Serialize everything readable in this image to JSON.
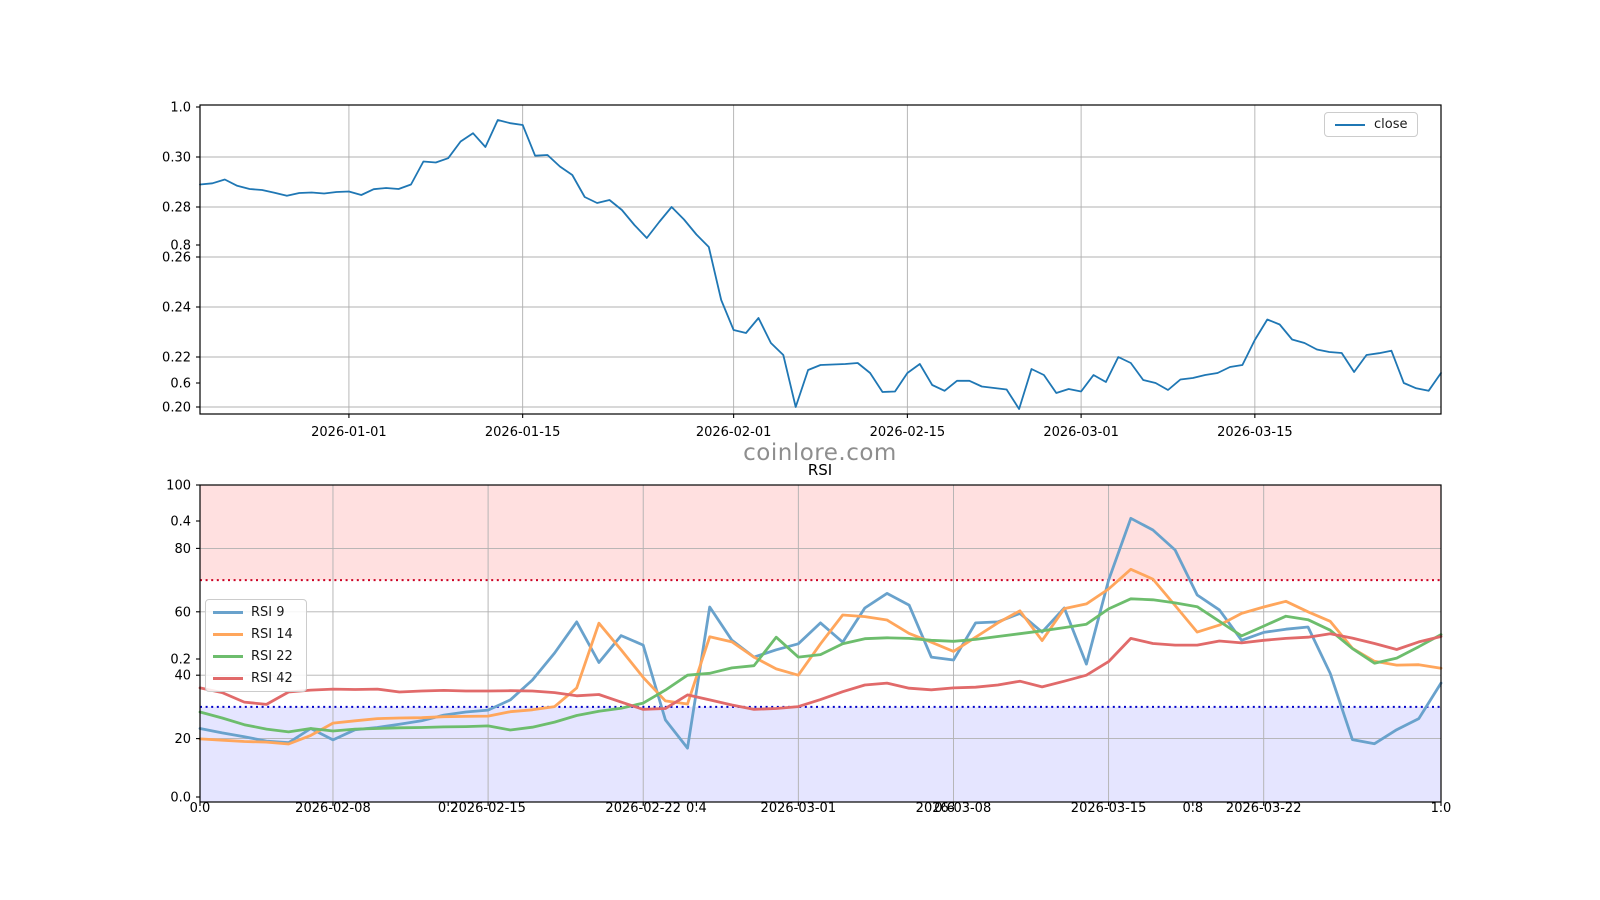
{
  "watermark": {
    "text": "coinlore.com"
  },
  "rsi_title": {
    "text": "RSI"
  },
  "price_legend": {
    "items": [
      {
        "label": "close",
        "color": "#1f77b4"
      }
    ]
  },
  "rsi_legend": {
    "items": [
      {
        "label": "RSI 9",
        "color": "#69a2cc"
      },
      {
        "label": "RSI 14",
        "color": "#ffa65c"
      },
      {
        "label": "RSI 22",
        "color": "#6dbd6d"
      },
      {
        "label": "RSI 42",
        "color": "#e16a6a"
      }
    ]
  },
  "colors": {
    "close": "#1f77b4",
    "rsi9": "#69a2cc",
    "rsi14": "#ffa65c",
    "rsi22": "#6dbd6d",
    "rsi42": "#e16a6a",
    "overbought_band": "rgba(255,0,0,0.12)",
    "oversold_band": "rgba(0,0,255,0.10)",
    "overbought_line": "#cc0022",
    "oversold_line": "#0000c8",
    "grid": "#b0b0b0",
    "spine": "#000000",
    "watermark": "#6e6e6e"
  },
  "overlay_axis": {
    "y_ticks": [
      {
        "label": "1.0",
        "t": 1.0
      },
      {
        "label": "0.8",
        "t": 0.8
      },
      {
        "label": "0.6",
        "t": 0.6
      },
      {
        "label": "0.4",
        "t": 0.4
      },
      {
        "label": "0.2",
        "t": 0.2
      },
      {
        "label": "0.0",
        "t": 0.0
      }
    ],
    "x_ticks": [
      {
        "label": "0.0",
        "t": 0.0
      },
      {
        "label": "0.2",
        "t": 0.2
      },
      {
        "label": "0.4",
        "t": 0.4
      },
      {
        "label": "0.6",
        "t": 0.6
      },
      {
        "label": "0.8",
        "t": 0.8
      },
      {
        "label": "1.0",
        "t": 1.0
      }
    ]
  },
  "chart_data": [
    {
      "type": "line",
      "name": "price",
      "title": "",
      "legend": [
        "close"
      ],
      "legend_position": "upper right",
      "grid": true,
      "x_start_date": "2025-12-20",
      "x_end_date": "2026-03-30",
      "x_ticks": [
        {
          "label": "2026-01-01",
          "day": 12
        },
        {
          "label": "2026-01-15",
          "day": 26
        },
        {
          "label": "2026-02-01",
          "day": 43
        },
        {
          "label": "2026-02-15",
          "day": 57
        },
        {
          "label": "2026-03-01",
          "day": 71
        },
        {
          "label": "2026-03-15",
          "day": 85
        }
      ],
      "y_ticks": [
        {
          "label": "0.20",
          "value": 0.2
        },
        {
          "label": "0.22",
          "value": 0.22
        },
        {
          "label": "0.24",
          "value": 0.24
        },
        {
          "label": "0.26",
          "value": 0.26
        },
        {
          "label": "0.28",
          "value": 0.28
        },
        {
          "label": "0.30",
          "value": 0.3
        }
      ],
      "ylim": [
        0.1972,
        0.3208
      ],
      "series": [
        {
          "name": "close",
          "color_key": "close",
          "width": 1.8,
          "values": [
            0.289,
            0.2895,
            0.291,
            0.2885,
            0.2872,
            0.2868,
            0.2857,
            0.2845,
            0.2856,
            0.2858,
            0.2854,
            0.286,
            0.2862,
            0.2848,
            0.2871,
            0.2876,
            0.2872,
            0.289,
            0.2982,
            0.2978,
            0.2995,
            0.3062,
            0.3095,
            0.304,
            0.3148,
            0.3135,
            0.3128,
            0.3005,
            0.3008,
            0.2962,
            0.2928,
            0.284,
            0.2816,
            0.2828,
            0.2788,
            0.2728,
            0.2676,
            0.274,
            0.28,
            0.275,
            0.269,
            0.264,
            0.2428,
            0.2308,
            0.2296,
            0.2356,
            0.2256,
            0.2208,
            0.2,
            0.2148,
            0.2168,
            0.217,
            0.2172,
            0.2176,
            0.2136,
            0.206,
            0.2062,
            0.2136,
            0.2172,
            0.2088,
            0.2065,
            0.2105,
            0.2105,
            0.2082,
            0.2076,
            0.207,
            0.1992,
            0.2152,
            0.2128,
            0.2056,
            0.2072,
            0.2062,
            0.2128,
            0.21,
            0.22,
            0.2176,
            0.2108,
            0.2096,
            0.2068,
            0.211,
            0.2116,
            0.2128,
            0.2136,
            0.216,
            0.2168,
            0.2268,
            0.235,
            0.233,
            0.227,
            0.2256,
            0.223,
            0.222,
            0.2216,
            0.214,
            0.2208,
            0.2215,
            0.2225,
            0.2096,
            0.2075,
            0.2065,
            0.2136
          ]
        }
      ]
    },
    {
      "type": "line",
      "name": "rsi",
      "title": "RSI",
      "legend": [
        "RSI 9",
        "RSI 14",
        "RSI 22",
        "RSI 42"
      ],
      "legend_position": "center left",
      "grid": true,
      "overbought_level": 70,
      "oversold_level": 30,
      "x_start_date": "2026-02-02",
      "x_end_date": "2026-03-30",
      "x_ticks": [
        {
          "label": "2026-02-08",
          "day": 6
        },
        {
          "label": "2026-02-15",
          "day": 13
        },
        {
          "label": "2026-02-22",
          "day": 20
        },
        {
          "label": "2026-03-01",
          "day": 27
        },
        {
          "label": "2026-03-08",
          "day": 34
        },
        {
          "label": "2026-03-15",
          "day": 41
        },
        {
          "label": "2026-03-22",
          "day": 48
        }
      ],
      "y_ticks": [
        {
          "label": "20",
          "value": 20
        },
        {
          "label": "40",
          "value": 40
        },
        {
          "label": "60",
          "value": 60
        },
        {
          "label": "80",
          "value": 80
        },
        {
          "label": "100",
          "value": 100
        }
      ],
      "ylim": [
        0,
        100
      ],
      "series": [
        {
          "name": "RSI 9",
          "color_key": "rsi9",
          "width": 2.8,
          "values": [
            23.2,
            21.8,
            20.6,
            19.2,
            18.7,
            23.2,
            19.6,
            22.8,
            23.5,
            24.5,
            25.6,
            27.4,
            28.4,
            29.0,
            32.2,
            38.5,
            47.0,
            56.8,
            44.0,
            52.5,
            49.5,
            25.9,
            17.0,
            61.5,
            51.0,
            45.7,
            48.0,
            49.9,
            56.5,
            50.4,
            61.2,
            65.8,
            62.1,
            45.7,
            44.8,
            56.5,
            56.8,
            59.5,
            53.6,
            61.2,
            43.5,
            70.0,
            89.5,
            85.8,
            79.5,
            65.3,
            60.6,
            51.0,
            53.5,
            54.5,
            55.2,
            40.6,
            19.7,
            18.4,
            22.8,
            26.3,
            37.5
          ]
        },
        {
          "name": "RSI 14",
          "color_key": "rsi14",
          "width": 2.8,
          "values": [
            19.9,
            19.5,
            19.1,
            18.9,
            18.3,
            21.0,
            24.9,
            25.6,
            26.3,
            26.5,
            26.6,
            26.9,
            27.0,
            27.1,
            28.5,
            29.1,
            30.1,
            36.0,
            56.4,
            48.0,
            39.3,
            31.9,
            30.9,
            52.1,
            50.5,
            45.7,
            42.0,
            40.0,
            49.9,
            59.0,
            58.5,
            57.4,
            53.2,
            50.4,
            47.5,
            52.0,
            56.5,
            60.3,
            50.9,
            61.0,
            62.5,
            67.2,
            73.4,
            70.3,
            62.0,
            53.6,
            55.8,
            59.5,
            61.5,
            63.3,
            60.0,
            57.0,
            48.5,
            44.4,
            43.2,
            43.3,
            42.2
          ]
        },
        {
          "name": "RSI 22",
          "color_key": "rsi22",
          "width": 2.8,
          "values": [
            28.4,
            26.5,
            24.4,
            23.0,
            22.1,
            23.2,
            22.4,
            23.0,
            23.2,
            23.4,
            23.5,
            23.7,
            23.8,
            24.0,
            22.7,
            23.6,
            25.2,
            27.3,
            28.6,
            29.6,
            31.2,
            35.3,
            40.0,
            40.6,
            42.3,
            43.0,
            52.0,
            45.7,
            46.5,
            49.9,
            51.5,
            51.8,
            51.6,
            51.0,
            50.7,
            51.3,
            52.2,
            53.1,
            54.0,
            55.0,
            56.1,
            60.9,
            64.1,
            63.8,
            62.8,
            61.6,
            57.0,
            52.4,
            55.5,
            58.6,
            57.5,
            54.2,
            48.4,
            43.8,
            45.4,
            49.0,
            52.8
          ]
        },
        {
          "name": "RSI 42",
          "color_key": "rsi42",
          "width": 2.8,
          "values": [
            36.0,
            34.5,
            31.5,
            30.8,
            34.7,
            35.3,
            35.6,
            35.5,
            35.6,
            34.7,
            35.0,
            35.2,
            35.0,
            35.0,
            35.1,
            35.0,
            34.5,
            33.5,
            33.9,
            31.5,
            29.2,
            29.5,
            33.8,
            32.2,
            30.6,
            29.2,
            29.5,
            30.1,
            32.3,
            34.8,
            36.9,
            37.5,
            35.9,
            35.4,
            36.0,
            36.2,
            36.9,
            38.1,
            36.3,
            38.1,
            40.0,
            44.3,
            51.6,
            50.0,
            49.5,
            49.5,
            50.8,
            50.2,
            51.0,
            51.6,
            52.0,
            53.1,
            51.7,
            50.0,
            48.1,
            50.5,
            52.2
          ]
        }
      ]
    }
  ]
}
